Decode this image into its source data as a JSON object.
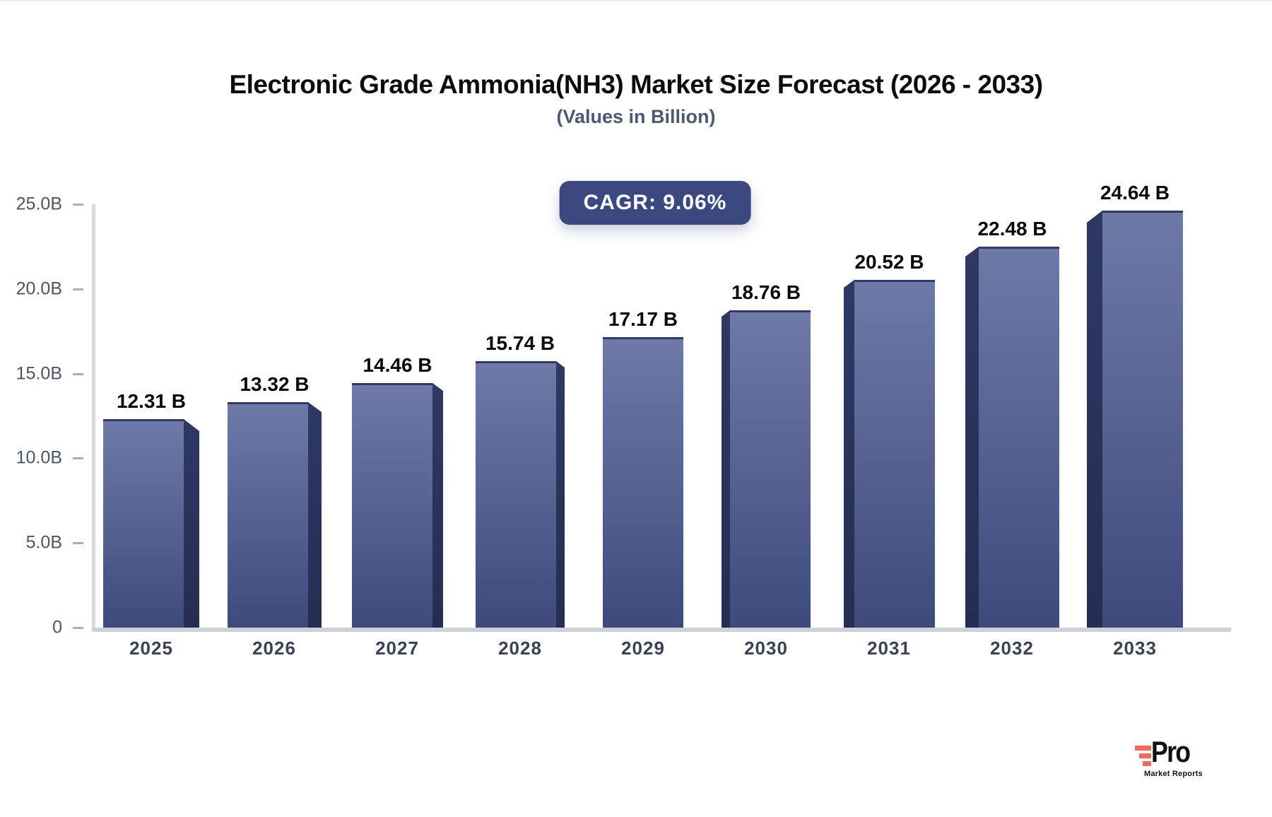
{
  "header": {
    "title": "Electronic Grade Ammonia(NH3) Market Size Forecast (2026 - 2033)",
    "subtitle": "(Values in Billion)"
  },
  "cagr_badge": {
    "label": "CAGR: 9.06%",
    "background": "#3b4980",
    "text_color": "#ffffff"
  },
  "chart_data": {
    "type": "bar",
    "title": "Electronic Grade Ammonia(NH3) Market Size Forecast (2026 - 2033)",
    "subtitle": "(Values in Billion)",
    "cagr_percent": 9.06,
    "categories": [
      "2025",
      "2026",
      "2027",
      "2028",
      "2029",
      "2030",
      "2031",
      "2032",
      "2033"
    ],
    "values": [
      12.31,
      13.32,
      14.46,
      15.74,
      17.17,
      18.76,
      20.52,
      22.48,
      24.64
    ],
    "bar_labels": [
      "12.31 B",
      "13.32 B",
      "14.46 B",
      "15.74 B",
      "17.17 B",
      "18.76 B",
      "20.52 B",
      "22.48 B",
      "24.64 B"
    ],
    "yticks": [
      {
        "label": "25.0B",
        "value": 25
      },
      {
        "label": "20.0B",
        "value": 20
      },
      {
        "label": "15.0B",
        "value": 15
      },
      {
        "label": "10.0B",
        "value": 10
      },
      {
        "label": "5.0B",
        "value": 5
      },
      {
        "label": "0",
        "value": 0
      }
    ],
    "ylim": [
      0,
      25
    ],
    "xlabel": "",
    "ylabel": "",
    "grid": false,
    "legend": false,
    "bar_colors": {
      "front_gradient_top": "#6e79a8",
      "front_gradient_bottom": "#3e4a7c",
      "side_color": "#2a335c",
      "top_edge_color": "#2f3a68"
    }
  },
  "logo": {
    "brand": "Pro",
    "subtext": "Market Reports",
    "accent_color": "#f4695e"
  }
}
